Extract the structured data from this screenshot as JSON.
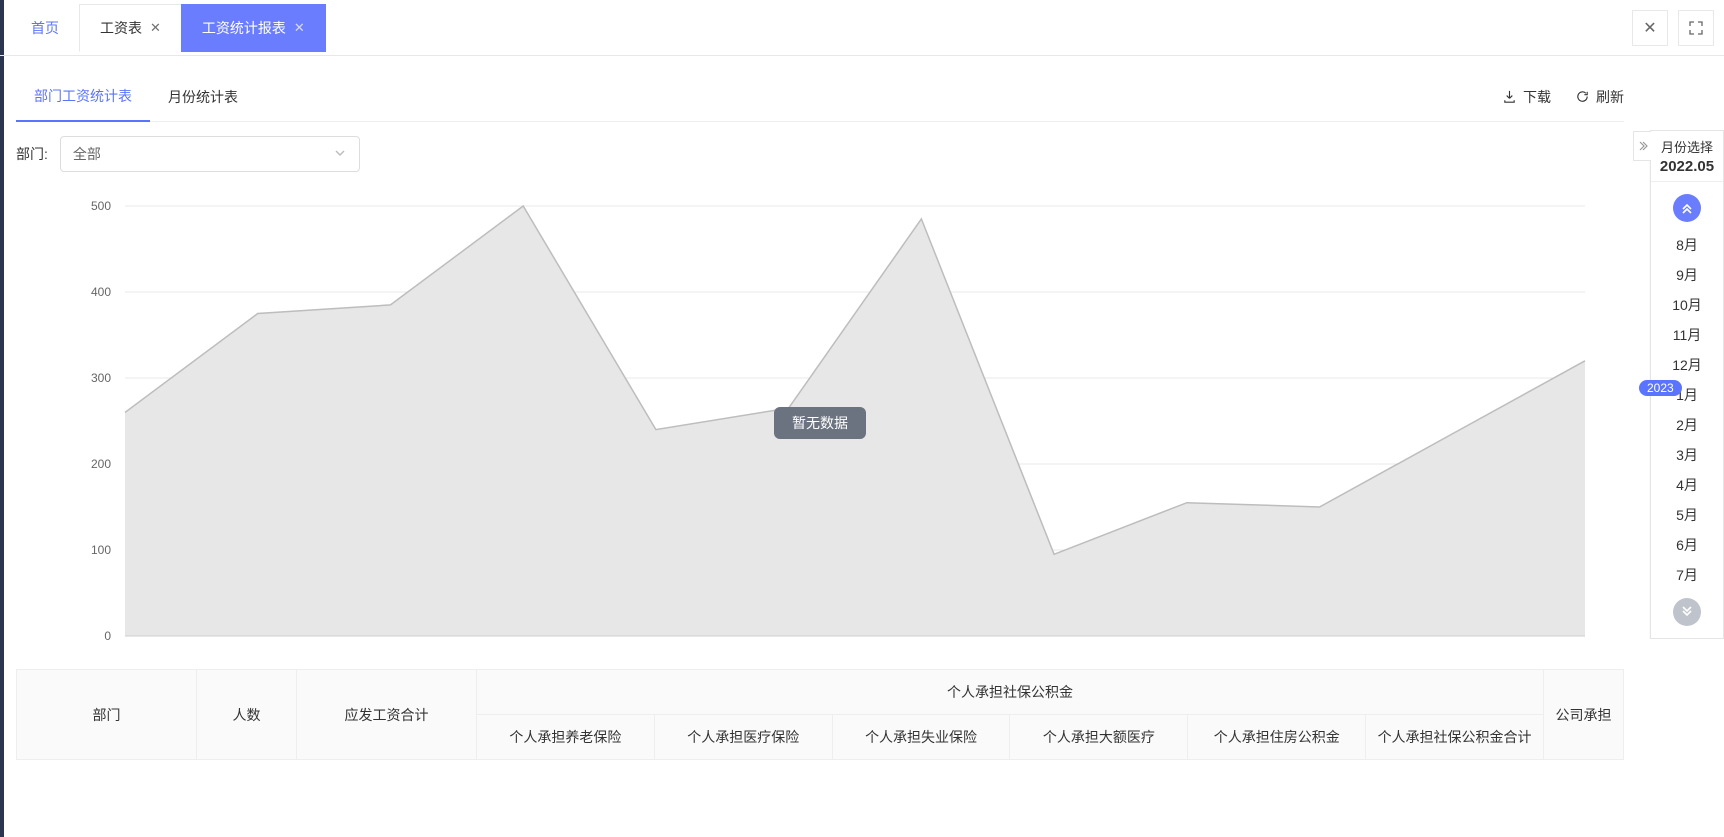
{
  "top_tabs": {
    "home": "首页",
    "tab1": "工资表",
    "tab2": "工资统计报表"
  },
  "sub_tabs": {
    "t1": "部门工资统计表",
    "t2": "月份统计表"
  },
  "actions": {
    "download": "下载",
    "refresh": "刷新"
  },
  "filter": {
    "label": "部门:",
    "value": "全部"
  },
  "month_rail": {
    "label": "月份选择",
    "current": "2022.05",
    "items": [
      "8月",
      "9月",
      "10月",
      "11月",
      "12月",
      "1月",
      "2月",
      "3月",
      "4月",
      "5月",
      "6月",
      "7月"
    ],
    "year_badge": "2023",
    "year_at_index": 5
  },
  "chart": {
    "type": "area",
    "no_data_label": "暂无数据",
    "background_color": "#ffffff",
    "grid_color": "#e9e9e9",
    "area_fill": "#e7e7e7",
    "area_stroke": "#bdbdbd",
    "axis_color": "#cfcfcf",
    "tick_color": "#666666",
    "label_fontsize": 12,
    "ylim": [
      0,
      500
    ],
    "ytick_step": 100,
    "yticks": [
      0,
      100,
      200,
      300,
      400,
      500
    ],
    "x_count": 12,
    "values": [
      260,
      375,
      385,
      500,
      240,
      265,
      485,
      95,
      155,
      150,
      235,
      320
    ]
  },
  "table": {
    "group_header": "个人承担社保公积金",
    "cols_top": [
      "部门",
      "人数",
      "应发工资合计"
    ],
    "cols_sub": [
      "个人承担养老保险",
      "个人承担医疗保险",
      "个人承担失业保险",
      "个人承担大额医疗",
      "个人承担住房公积金",
      "个人承担社保公积金合计"
    ],
    "overflow_col": "公司承担"
  }
}
